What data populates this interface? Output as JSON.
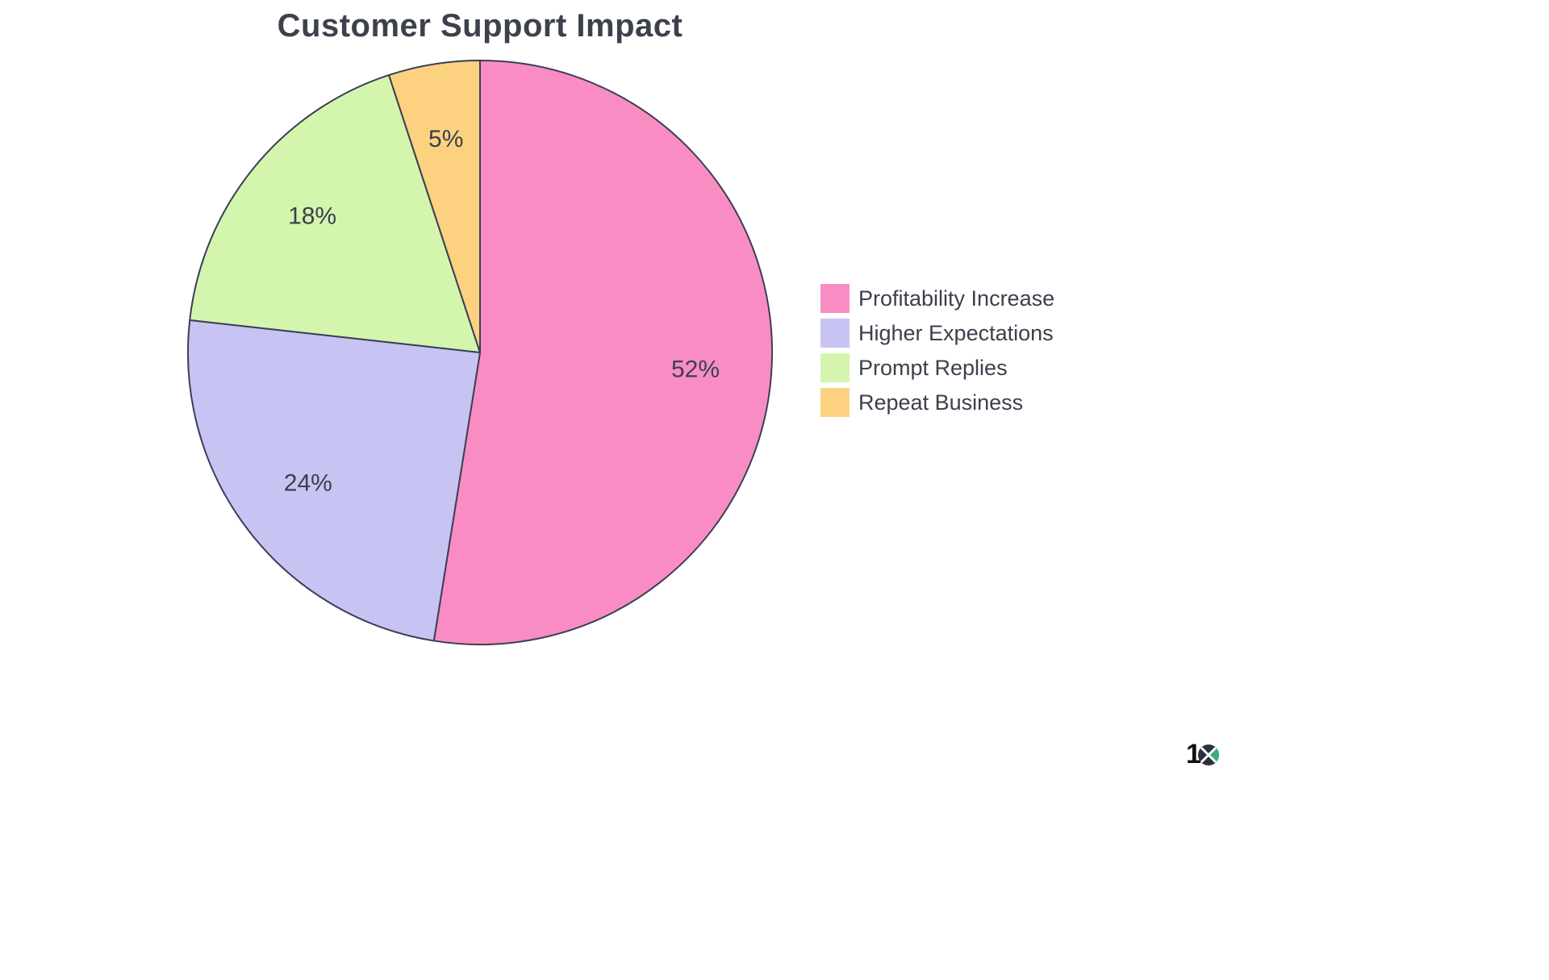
{
  "chart_data": {
    "type": "pie",
    "title": "Customer Support Impact",
    "legend_position": "right",
    "direction": "clockwise",
    "start_angle_deg": 0,
    "stroke_color": "#3B3F54",
    "label_color": "#3B404B",
    "title_color": "#3C414C",
    "slices": [
      {
        "label": "Profitability Increase",
        "value": 52,
        "display": "52%",
        "color": "#F98DC3"
      },
      {
        "label": "Higher Expectations",
        "value": 24,
        "display": "24%",
        "color": "#C7C4F4"
      },
      {
        "label": "Prompt Replies",
        "value": 18,
        "display": "18%",
        "color": "#D4F5AE"
      },
      {
        "label": "Repeat Business",
        "value": 5,
        "display": "5%",
        "color": "#FCD281"
      }
    ]
  },
  "watermark": {
    "text": "1",
    "icon": "circle-x-logo",
    "icon_colors": {
      "dark": "#2A3140",
      "green": "#3BAE7C"
    }
  }
}
